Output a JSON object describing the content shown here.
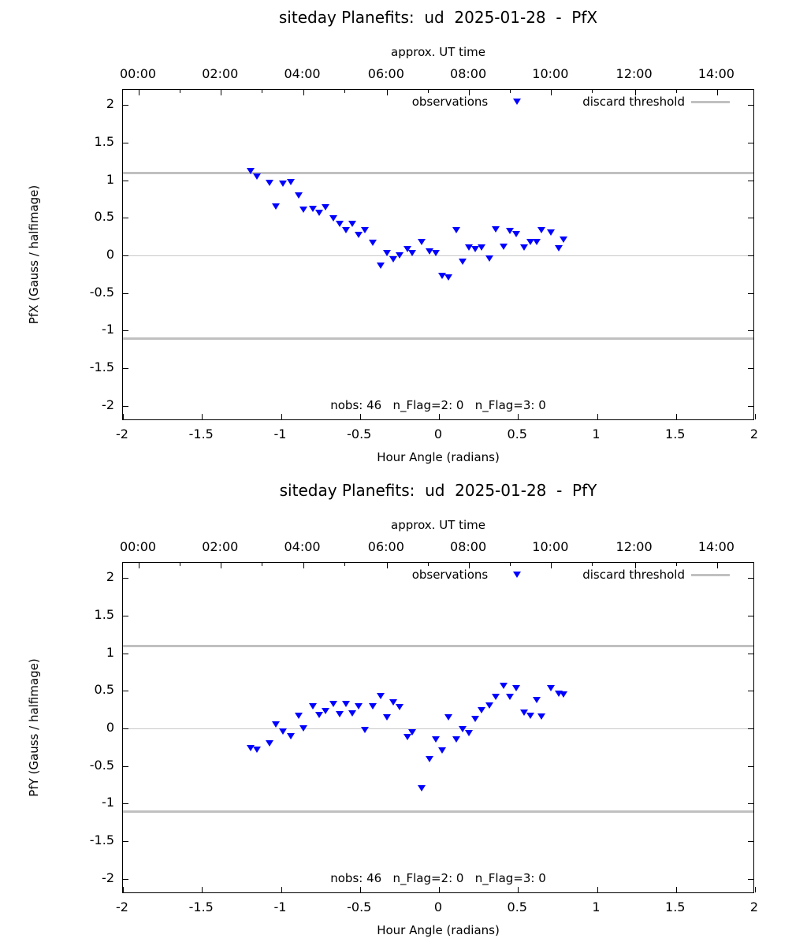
{
  "colors": {
    "observation": "#0000ff",
    "threshold": "#c0c0c0",
    "zero_line": "#c8c8c8",
    "frame": "#000000",
    "background": "#ffffff"
  },
  "chart_data": [
    {
      "type": "scatter",
      "title": "siteday Planefits:  ud  2025-01-28  -  PfX",
      "x2label": "approx. UT time",
      "xlabel": "Hour Angle (radians)",
      "ylabel": "PfX (Gauss / halfimage)",
      "annotation": "nobs: 46   n_Flag=2: 0   n_Flag=3: 0",
      "legend": [
        {
          "label": "observations",
          "marker": "triangle-down",
          "color": "#0000ff"
        },
        {
          "label": "discard threshold",
          "marker": "line",
          "color": "#c0c0c0"
        }
      ],
      "xlim": [
        -2,
        2
      ],
      "ylim": [
        -2.2,
        2.2
      ],
      "grid": false,
      "legend_position": "top-right-inside",
      "x_ticks": [
        -2,
        -1.5,
        -1,
        -0.5,
        0,
        0.5,
        1,
        1.5,
        2
      ],
      "x_tick_labels": [
        "-2",
        "-1.5",
        "-1",
        "-0.5",
        "0",
        "0.5",
        "1",
        "1.5",
        "2"
      ],
      "y_ticks": [
        2,
        1.5,
        1,
        0.5,
        0,
        -0.5,
        -1,
        -1.5,
        -2
      ],
      "y_tick_labels": [
        "2",
        "1.5",
        "1",
        "0.5",
        "0",
        "-0.5",
        "-1",
        "-1.5",
        "-2"
      ],
      "x2_major_ticks": [
        {
          "label": "00:00",
          "x": -1.9
        },
        {
          "label": "02:00",
          "x": -1.38
        },
        {
          "label": "04:00",
          "x": -0.86
        },
        {
          "label": "06:00",
          "x": -0.33
        },
        {
          "label": "08:00",
          "x": 0.19
        },
        {
          "label": "10:00",
          "x": 0.71
        },
        {
          "label": "12:00",
          "x": 1.24
        },
        {
          "label": "14:00",
          "x": 1.76
        }
      ],
      "x2_minor_ticks": [
        -1.64,
        -1.12,
        -0.6,
        -0.07,
        0.45,
        0.97,
        1.5
      ],
      "thresholds": [
        1.1,
        -1.1
      ],
      "zero_line": 0,
      "series": [
        {
          "name": "observations",
          "marker": "triangle-down",
          "color": "#0000ff",
          "points": [
            [
              -1.19,
              1.12
            ],
            [
              -1.15,
              1.05
            ],
            [
              -1.07,
              0.96
            ],
            [
              -1.03,
              0.65
            ],
            [
              -0.99,
              0.95
            ],
            [
              -0.94,
              0.97
            ],
            [
              -0.89,
              0.8
            ],
            [
              -0.86,
              0.61
            ],
            [
              -0.8,
              0.62
            ],
            [
              -0.76,
              0.57
            ],
            [
              -0.72,
              0.64
            ],
            [
              -0.67,
              0.49
            ],
            [
              -0.63,
              0.42
            ],
            [
              -0.59,
              0.34
            ],
            [
              -0.55,
              0.42
            ],
            [
              -0.51,
              0.27
            ],
            [
              -0.47,
              0.34
            ],
            [
              -0.42,
              0.17
            ],
            [
              -0.37,
              -0.14
            ],
            [
              -0.33,
              0.03
            ],
            [
              -0.29,
              -0.05
            ],
            [
              -0.25,
              0.0
            ],
            [
              -0.2,
              0.08
            ],
            [
              -0.17,
              0.03
            ],
            [
              -0.11,
              0.18
            ],
            [
              -0.06,
              0.05
            ],
            [
              -0.02,
              0.03
            ],
            [
              0.02,
              -0.27
            ],
            [
              0.06,
              -0.29
            ],
            [
              0.11,
              0.34
            ],
            [
              0.15,
              -0.08
            ],
            [
              0.19,
              0.11
            ],
            [
              0.23,
              0.08
            ],
            [
              0.27,
              0.11
            ],
            [
              0.32,
              -0.04
            ],
            [
              0.36,
              0.35
            ],
            [
              0.41,
              0.12
            ],
            [
              0.45,
              0.32
            ],
            [
              0.49,
              0.28
            ],
            [
              0.54,
              0.11
            ],
            [
              0.58,
              0.18
            ],
            [
              0.62,
              0.18
            ],
            [
              0.65,
              0.34
            ],
            [
              0.71,
              0.3
            ],
            [
              0.76,
              0.09
            ],
            [
              0.79,
              0.21
            ]
          ]
        }
      ]
    },
    {
      "type": "scatter",
      "title": "siteday Planefits:  ud  2025-01-28  -  PfY",
      "x2label": "approx. UT time",
      "xlabel": "Hour Angle (radians)",
      "ylabel": "PfY (Gauss / halfimage)",
      "annotation": "nobs: 46   n_Flag=2: 0   n_Flag=3: 0",
      "legend": [
        {
          "label": "observations",
          "marker": "triangle-down",
          "color": "#0000ff"
        },
        {
          "label": "discard threshold",
          "marker": "line",
          "color": "#c0c0c0"
        }
      ],
      "xlim": [
        -2,
        2
      ],
      "ylim": [
        -2.2,
        2.2
      ],
      "grid": false,
      "legend_position": "top-right-inside",
      "x_ticks": [
        -2,
        -1.5,
        -1,
        -0.5,
        0,
        0.5,
        1,
        1.5,
        2
      ],
      "x_tick_labels": [
        "-2",
        "-1.5",
        "-1",
        "-0.5",
        "0",
        "0.5",
        "1",
        "1.5",
        "2"
      ],
      "y_ticks": [
        2,
        1.5,
        1,
        0.5,
        0,
        -0.5,
        -1,
        -1.5,
        -2
      ],
      "y_tick_labels": [
        "2",
        "1.5",
        "1",
        "0.5",
        "0",
        "-0.5",
        "-1",
        "-1.5",
        "-2"
      ],
      "x2_major_ticks": [
        {
          "label": "00:00",
          "x": -1.9
        },
        {
          "label": "02:00",
          "x": -1.38
        },
        {
          "label": "04:00",
          "x": -0.86
        },
        {
          "label": "06:00",
          "x": -0.33
        },
        {
          "label": "08:00",
          "x": 0.19
        },
        {
          "label": "10:00",
          "x": 0.71
        },
        {
          "label": "12:00",
          "x": 1.24
        },
        {
          "label": "14:00",
          "x": 1.76
        }
      ],
      "x2_minor_ticks": [
        -1.64,
        -1.12,
        -0.6,
        -0.07,
        0.45,
        0.97,
        1.5
      ],
      "thresholds": [
        1.1,
        -1.1
      ],
      "zero_line": 0,
      "series": [
        {
          "name": "observations",
          "marker": "triangle-down",
          "color": "#0000ff",
          "points": [
            [
              -1.19,
              -0.26
            ],
            [
              -1.15,
              -0.28
            ],
            [
              -1.07,
              -0.2
            ],
            [
              -1.03,
              0.05
            ],
            [
              -0.99,
              -0.04
            ],
            [
              -0.94,
              -0.1
            ],
            [
              -0.89,
              0.17
            ],
            [
              -0.86,
              0.0
            ],
            [
              -0.8,
              0.29
            ],
            [
              -0.76,
              0.18
            ],
            [
              -0.72,
              0.23
            ],
            [
              -0.67,
              0.33
            ],
            [
              -0.63,
              0.19
            ],
            [
              -0.59,
              0.33
            ],
            [
              -0.55,
              0.2
            ],
            [
              -0.51,
              0.29
            ],
            [
              -0.47,
              -0.02
            ],
            [
              -0.42,
              0.29
            ],
            [
              -0.37,
              0.43
            ],
            [
              -0.33,
              0.15
            ],
            [
              -0.29,
              0.35
            ],
            [
              -0.25,
              0.28
            ],
            [
              -0.2,
              -0.12
            ],
            [
              -0.17,
              -0.05
            ],
            [
              -0.11,
              -0.8
            ],
            [
              -0.06,
              -0.41
            ],
            [
              -0.02,
              -0.15
            ],
            [
              0.02,
              -0.29
            ],
            [
              0.06,
              0.15
            ],
            [
              0.11,
              -0.15
            ],
            [
              0.15,
              -0.01
            ],
            [
              0.19,
              -0.06
            ],
            [
              0.23,
              0.13
            ],
            [
              0.27,
              0.24
            ],
            [
              0.32,
              0.3
            ],
            [
              0.36,
              0.42
            ],
            [
              0.41,
              0.57
            ],
            [
              0.45,
              0.42
            ],
            [
              0.49,
              0.53
            ],
            [
              0.54,
              0.21
            ],
            [
              0.58,
              0.17
            ],
            [
              0.62,
              0.38
            ],
            [
              0.65,
              0.16
            ],
            [
              0.71,
              0.53
            ],
            [
              0.76,
              0.46
            ],
            [
              0.79,
              0.45
            ]
          ]
        }
      ]
    }
  ]
}
